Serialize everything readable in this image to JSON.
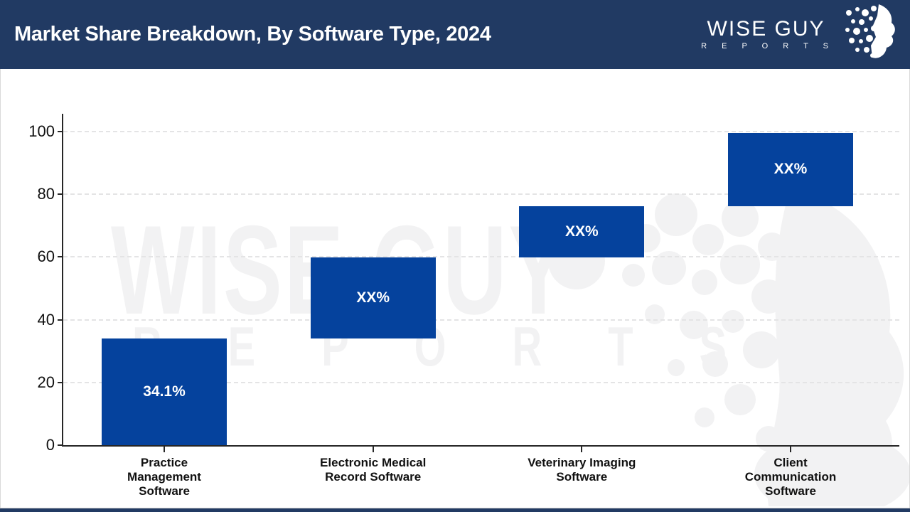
{
  "header": {
    "title": "Market Share Breakdown, By Software Type, 2024",
    "background_color": "#213a63",
    "logo": {
      "line1": "WISE GUY",
      "line2": "R E P O R T S"
    }
  },
  "watermark": {
    "line1": "WISE GUY",
    "line2": "R E P O R T S"
  },
  "chart_data": {
    "type": "bar",
    "subtype": "waterfall",
    "title": "Market Share Breakdown, By Software Type, 2024",
    "categories": [
      "Practice Management Software",
      "Electronic Medical Record Software",
      "Veterinary Imaging Software",
      "Client Communication Software"
    ],
    "category_lines": [
      [
        "Practice",
        "Management",
        "Software"
      ],
      [
        "Electronic Medical",
        "Record Software"
      ],
      [
        "Veterinary Imaging",
        "Software"
      ],
      [
        "Client",
        "Communication",
        "Software"
      ]
    ],
    "segments": [
      {
        "label": "34.1%",
        "start": 0,
        "end": 34.1
      },
      {
        "label": "XX%",
        "start": 34.1,
        "end": 59.9
      },
      {
        "label": "XX%",
        "start": 59.9,
        "end": 76.3
      },
      {
        "label": "XX%",
        "start": 76.3,
        "end": 99.6
      }
    ],
    "yticks": [
      0,
      20,
      40,
      60,
      80,
      100
    ],
    "ylim": [
      0,
      105
    ],
    "xlabel": "",
    "ylabel": "",
    "grid": "horizontal-dashed",
    "legend": "none",
    "bar_color": "#05429d",
    "bar_label_color": "#ffffff",
    "axis_color": "#262626",
    "gridline_color": "#e4e4e5"
  },
  "footer": {
    "bar_color": "#213a63"
  }
}
